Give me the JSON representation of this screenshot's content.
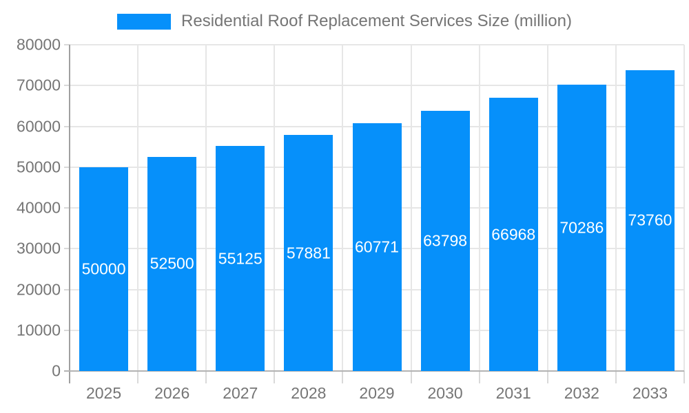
{
  "legend": {
    "label": "Residential Roof Replacement Services Size (million)"
  },
  "chart_data": {
    "type": "bar",
    "title": "Residential Roof Replacement Services Size (million)",
    "categories": [
      "2025",
      "2026",
      "2027",
      "2028",
      "2029",
      "2030",
      "2031",
      "2032",
      "2033"
    ],
    "values": [
      50000,
      52500,
      55125,
      57881,
      60771,
      63798,
      66968,
      70286,
      73760
    ],
    "bar_labels": [
      "50000",
      "52500",
      "55125",
      "57881",
      "60771",
      "63798",
      "66968",
      "70286",
      "73760"
    ],
    "xlabel": "",
    "ylabel": "",
    "ylim": [
      0,
      80000
    ],
    "yticks": [
      0,
      10000,
      20000,
      30000,
      40000,
      50000,
      60000,
      70000,
      80000
    ],
    "ytick_labels": [
      "0",
      "10000",
      "20000",
      "30000",
      "40000",
      "50000",
      "60000",
      "70000",
      "80000"
    ],
    "grid": "horizontal and vertical gridlines on",
    "legend_position": "top center",
    "value_labels_position": "inside bars, centered, white",
    "colors": {
      "bar": "#0690FA",
      "value_label_text": "#FFFFFF",
      "axis_text": "#757575",
      "gridline": "#E6E6E6",
      "x_axis_line": "#B3B3B3",
      "y_axis_line": "#A0A0A0"
    }
  }
}
